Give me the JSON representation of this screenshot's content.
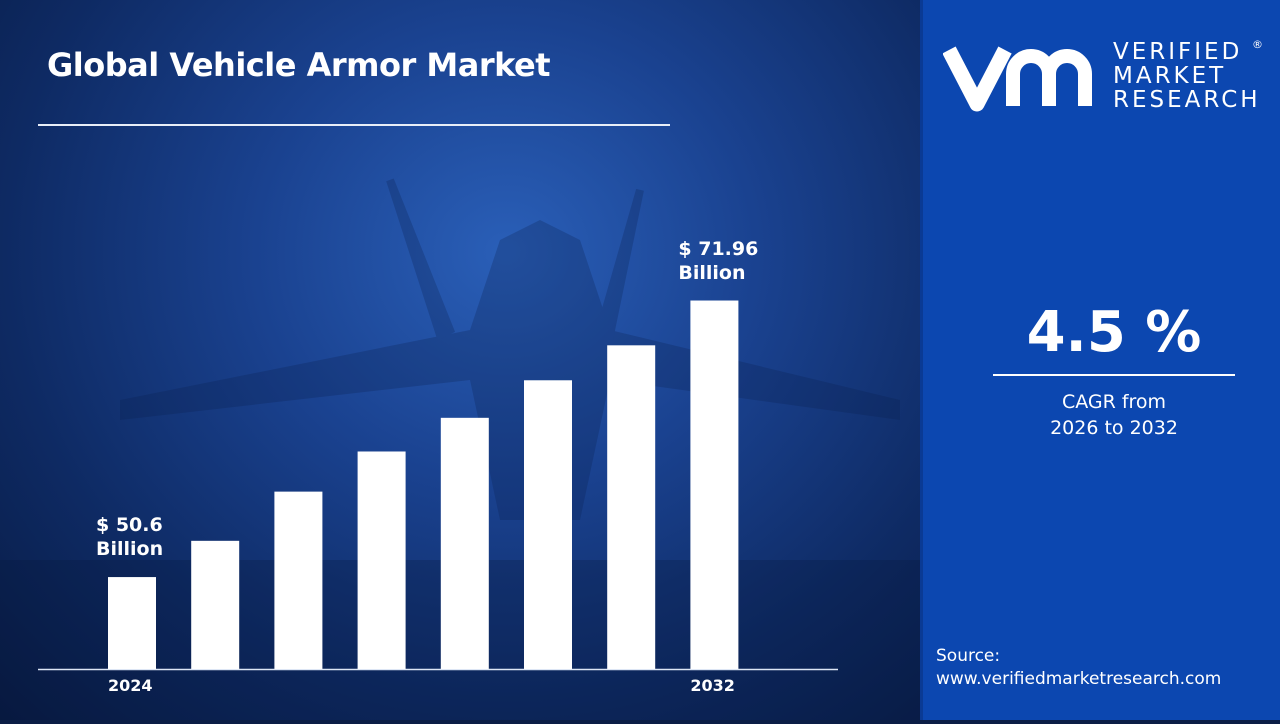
{
  "title": "Global Vehicle Armor Market",
  "chart_data": {
    "type": "bar",
    "title": "Global Vehicle Armor Market",
    "categories": [
      "2024",
      "",
      "",
      "",
      "",
      "",
      "",
      "2032"
    ],
    "values": [
      50.6,
      53.4,
      57.2,
      60.3,
      62.9,
      65.8,
      68.5,
      71.96
    ],
    "data_labels": [
      {
        "index": 0,
        "line1": "$ 50.6",
        "line2": "Billion"
      },
      {
        "index": 7,
        "line1": "$ 71.96",
        "line2": "Billion"
      }
    ],
    "xlabel": "",
    "ylabel": "",
    "ylim": [
      43.5,
      72
    ],
    "grid": false,
    "bar_color": "#ffffff"
  },
  "logo": {
    "line1": "VERIFIED",
    "line2": "MARKET",
    "line3": "RESEARCH",
    "reg": "®"
  },
  "cagr": {
    "value": "4.5 %",
    "line1": "CAGR from",
    "line2": "2026 to 2032"
  },
  "source": {
    "label": "Source:",
    "url": "www.verifiedmarketresearch.com"
  },
  "colors": {
    "panel": "#0c47b0",
    "background": "#0e2a63"
  }
}
